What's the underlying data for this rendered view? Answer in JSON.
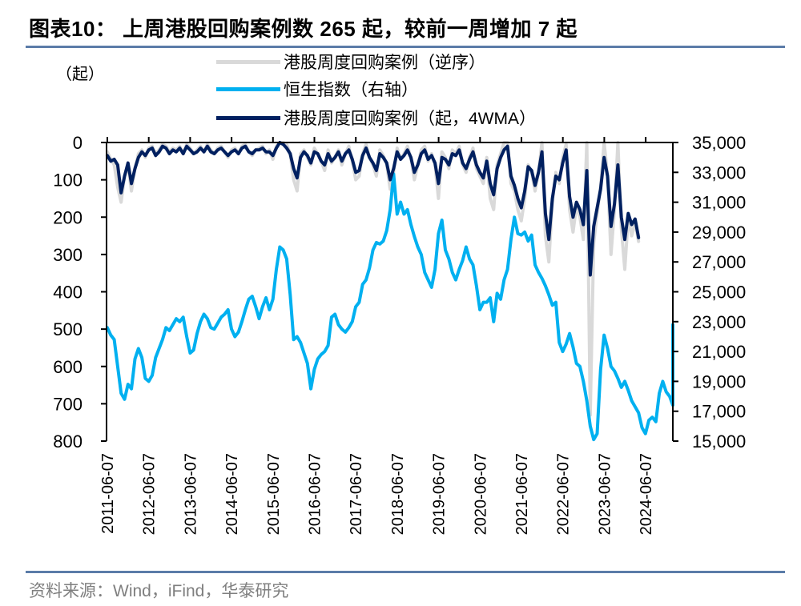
{
  "title": "图表10：  上周港股回购案例数 265 起，较前一周增加 7 起",
  "source": "资料来源：Wind，iFind，华泰研究",
  "colors": {
    "rule": "#5b7ca8",
    "weekly_cases": "#d9d9d9",
    "hsi": "#00b0f0",
    "cases_4wma": "#002060"
  },
  "chart_data": {
    "type": "line",
    "title": "上周港股回购案例数 265 起，较前一周增加 7 起",
    "left_axis": {
      "unit_label": "（起）",
      "reversed": true,
      "range": [
        0,
        800
      ],
      "ticks": [
        "0",
        "100",
        "200",
        "300",
        "400",
        "500",
        "600",
        "700",
        "800"
      ]
    },
    "right_axis": {
      "range": [
        15000,
        35000
      ],
      "ticks": [
        "35,000",
        "33,000",
        "31,000",
        "29,000",
        "27,000",
        "25,000",
        "23,000",
        "21,000",
        "19,000",
        "17,000",
        "15,000"
      ]
    },
    "x_tick_labels": [
      "2011-06-07",
      "2012-06-07",
      "2013-06-07",
      "2014-06-07",
      "2015-06-07",
      "2016-06-07",
      "2017-06-07",
      "2018-06-07",
      "2019-06-07",
      "2020-06-07",
      "2021-06-07",
      "2022-06-07",
      "2023-06-07",
      "2024-06-07"
    ],
    "x_range_years": [
      2011.43,
      2025.1
    ],
    "legend": [
      {
        "name": "港股周度回购案例（逆序）",
        "series": "weekly_cases"
      },
      {
        "name": "恒生指数（右轴）",
        "series": "hsi"
      },
      {
        "name": "港股周度回购案例（起，4WMA）",
        "series": "cases_4wma"
      }
    ],
    "series": [
      {
        "name": "港股周度回购案例（逆序）",
        "key": "weekly_cases",
        "axis": "left",
        "x_start": 2011.43,
        "x_step": 0.0833,
        "values": [
          25,
          45,
          60,
          120,
          160,
          90,
          60,
          130,
          70,
          30,
          20,
          40,
          15,
          10,
          30,
          20,
          5,
          10,
          25,
          15,
          20,
          10,
          30,
          5,
          15,
          30,
          20,
          10,
          25,
          5,
          20,
          30,
          15,
          10,
          25,
          40,
          20,
          15,
          30,
          10,
          5,
          25,
          35,
          20,
          15,
          10,
          30,
          20,
          45,
          10,
          0,
          -5,
          5,
          30,
          100,
          130,
          30,
          20,
          40,
          60,
          15,
          30,
          50,
          75,
          20,
          55,
          40,
          20,
          60,
          30,
          10,
          50,
          100,
          90,
          30,
          5,
          40,
          60,
          90,
          20,
          35,
          60,
          125,
          80,
          15,
          45,
          30,
          10,
          40,
          100,
          60,
          20,
          10,
          50,
          30,
          60,
          150,
          25,
          40,
          70,
          20,
          30,
          10,
          60,
          80,
          40,
          15,
          70,
          90,
          110,
          40,
          150,
          180,
          60,
          30,
          0,
          -5,
          110,
          130,
          180,
          210,
          150,
          60,
          80,
          130,
          80,
          -10,
          250,
          320,
          160,
          80,
          110,
          40,
          5,
          180,
          240,
          170,
          200,
          260,
          -20,
          730,
          270,
          190,
          120,
          -5,
          90,
          300,
          180,
          -5,
          230,
          340,
          200,
          250,
          215,
          265
        ]
      },
      {
        "name": "港股周度回购案例（起，4WMA）",
        "key": "cases_4wma",
        "axis": "left",
        "x_start": 2011.43,
        "x_step": 0.0833,
        "values": [
          35,
          50,
          45,
          60,
          135,
          90,
          55,
          110,
          70,
          40,
          25,
          35,
          20,
          15,
          35,
          25,
          10,
          15,
          30,
          20,
          25,
          15,
          30,
          10,
          20,
          30,
          25,
          15,
          25,
          10,
          25,
          30,
          20,
          15,
          25,
          35,
          25,
          20,
          30,
          15,
          10,
          25,
          30,
          20,
          20,
          15,
          25,
          25,
          35,
          15,
          0,
          5,
          15,
          30,
          70,
          95,
          40,
          25,
          35,
          55,
          25,
          30,
          50,
          60,
          30,
          50,
          40,
          25,
          50,
          30,
          20,
          45,
          80,
          75,
          35,
          15,
          40,
          55,
          75,
          30,
          40,
          55,
          100,
          70,
          25,
          45,
          35,
          20,
          40,
          80,
          60,
          30,
          20,
          45,
          35,
          55,
          110,
          40,
          45,
          60,
          30,
          35,
          20,
          55,
          70,
          45,
          25,
          60,
          80,
          95,
          50,
          110,
          140,
          70,
          40,
          20,
          10,
          90,
          115,
          150,
          175,
          130,
          65,
          75,
          115,
          80,
          25,
          190,
          260,
          150,
          90,
          100,
          55,
          20,
          145,
          200,
          160,
          180,
          220,
          75,
          355,
          225,
          175,
          125,
          40,
          90,
          225,
          165,
          60,
          200,
          260,
          190,
          220,
          205,
          255
        ]
      },
      {
        "name": "恒生指数（右轴）",
        "key": "hsi",
        "axis": "right",
        "x_start": 2011.43,
        "x_step": 0.0833,
        "values": [
          22600,
          22100,
          21800,
          20000,
          18200,
          17800,
          18800,
          18500,
          20500,
          21200,
          20600,
          19200,
          19000,
          19400,
          20600,
          21200,
          21800,
          22600,
          22400,
          22800,
          23200,
          23000,
          23300,
          22000,
          20900,
          21100,
          22200,
          23000,
          23500,
          23200,
          22600,
          22500,
          22900,
          23300,
          23500,
          23800,
          22500,
          22000,
          22300,
          23000,
          23800,
          24500,
          24700,
          24000,
          23200,
          24000,
          24600,
          23800,
          24500,
          26500,
          28000,
          27800,
          27200,
          24800,
          21800,
          22000,
          21600,
          20900,
          20200,
          18500,
          19800,
          20500,
          20800,
          21000,
          21400,
          23300,
          23500,
          22800,
          22500,
          22300,
          22600,
          23000,
          24000,
          24300,
          25500,
          25800,
          26600,
          27800,
          28300,
          28200,
          28400,
          29100,
          30500,
          32900,
          30200,
          31000,
          30200,
          30500,
          29500,
          28700,
          28000,
          27500,
          26300,
          25800,
          25300,
          26500,
          28900,
          29800,
          27800,
          27200,
          26300,
          25800,
          26500,
          27100,
          28000,
          27200,
          26800,
          25400,
          23800,
          24300,
          24300,
          24600,
          23000,
          24900,
          24500,
          25800,
          26500,
          28500,
          30000,
          28900,
          28800,
          29000,
          28400,
          28800,
          26800,
          26300,
          25900,
          25400,
          24800,
          24100,
          24300,
          21600,
          21000,
          21500,
          22200,
          21300,
          20200,
          20000,
          19000,
          17700,
          16000,
          15100,
          15500,
          19800,
          22100,
          21200,
          20000,
          19700,
          19200,
          18600,
          19000,
          18400,
          17700,
          17300,
          16900,
          15900,
          15500,
          16400,
          16600,
          16300,
          18200,
          19000,
          18300,
          18000,
          17400,
          18000,
          17900,
          18400,
          22800,
          20700,
          20300,
          19900,
          20000
        ]
      }
    ]
  }
}
